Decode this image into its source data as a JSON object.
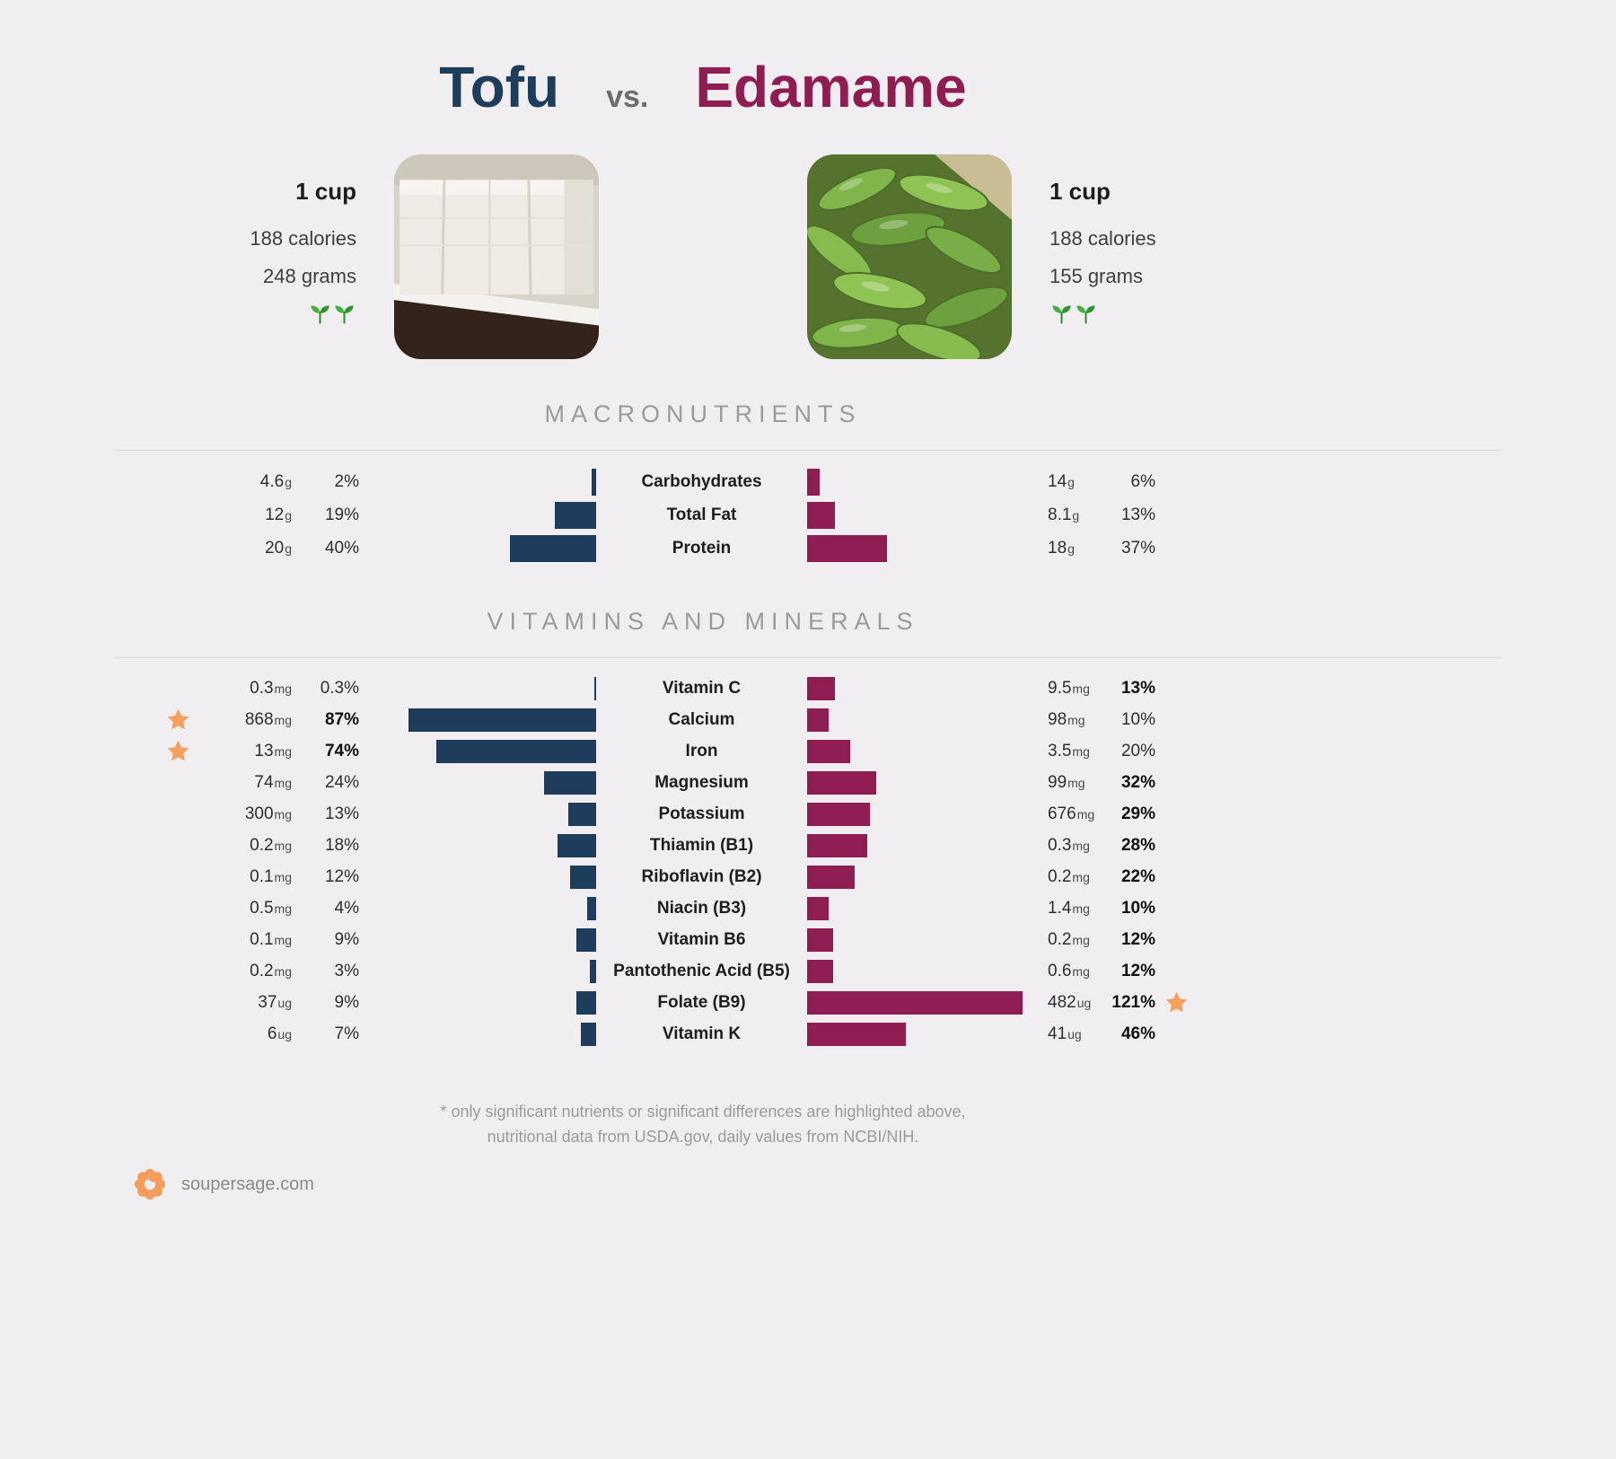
{
  "header": {
    "tofu_title": "Tofu",
    "vs_label": "vs.",
    "edamame_title": "Edamame"
  },
  "foods": {
    "tofu": {
      "serving": "1 cup",
      "calories": "188 calories",
      "weight": "248 grams"
    },
    "edamame": {
      "serving": "1 cup",
      "calories": "188 calories",
      "weight": "155 grams"
    }
  },
  "footnote": {
    "line1": "* only significant nutrients or significant differences are highlighted above,",
    "line2": "nutritional data from USDA.gov, daily values from NCBI/NIH."
  },
  "footer": {
    "site": "soupersage.com"
  },
  "icons": {
    "highlight": "star-icon",
    "plant_based": "sprout-icon",
    "brand": "flower-logo-icon"
  },
  "colors": {
    "tofu_bar": "#1e3c5c",
    "edamame_bar": "#8e1d52",
    "star": "#f5a05f",
    "background": "#f0eef1",
    "heading_gray": "#9b9b9b"
  },
  "chart_data": [
    {
      "type": "bar",
      "title": "MACRONUTRIENTS",
      "orientation": "horizontal-diverging",
      "series": [
        "Tofu",
        "Edamame"
      ],
      "value_unit": "% daily value",
      "axis_max_pct": 100,
      "rows": [
        {
          "label": "Carbohydrates",
          "left": {
            "value": "4.6",
            "unit": "g",
            "pct": 2,
            "pct_label": "2%",
            "bold": false,
            "star": false
          },
          "right": {
            "value": "14",
            "unit": "g",
            "pct": 6,
            "pct_label": "6%",
            "bold": false,
            "star": false
          }
        },
        {
          "label": "Total Fat",
          "left": {
            "value": "12",
            "unit": "g",
            "pct": 19,
            "pct_label": "19%",
            "bold": false,
            "star": false
          },
          "right": {
            "value": "8.1",
            "unit": "g",
            "pct": 13,
            "pct_label": "13%",
            "bold": false,
            "star": false
          }
        },
        {
          "label": "Protein",
          "left": {
            "value": "20",
            "unit": "g",
            "pct": 40,
            "pct_label": "40%",
            "bold": false,
            "star": false
          },
          "right": {
            "value": "18",
            "unit": "g",
            "pct": 37,
            "pct_label": "37%",
            "bold": false,
            "star": false
          }
        }
      ]
    },
    {
      "type": "bar",
      "title": "VITAMINS AND MINERALS",
      "orientation": "horizontal-diverging",
      "series": [
        "Tofu",
        "Edamame"
      ],
      "value_unit": "% daily value",
      "axis_max_pct": 100,
      "rows": [
        {
          "label": "Vitamin C",
          "left": {
            "value": "0.3",
            "unit": "mg",
            "pct": 0.3,
            "pct_label": "0.3%",
            "bold": false,
            "star": false
          },
          "right": {
            "value": "9.5",
            "unit": "mg",
            "pct": 13,
            "pct_label": "13%",
            "bold": true,
            "star": false
          }
        },
        {
          "label": "Calcium",
          "left": {
            "value": "868",
            "unit": "mg",
            "pct": 87,
            "pct_label": "87%",
            "bold": true,
            "star": true
          },
          "right": {
            "value": "98",
            "unit": "mg",
            "pct": 10,
            "pct_label": "10%",
            "bold": false,
            "star": false
          }
        },
        {
          "label": "Iron",
          "left": {
            "value": "13",
            "unit": "mg",
            "pct": 74,
            "pct_label": "74%",
            "bold": true,
            "star": true
          },
          "right": {
            "value": "3.5",
            "unit": "mg",
            "pct": 20,
            "pct_label": "20%",
            "bold": false,
            "star": false
          }
        },
        {
          "label": "Magnesium",
          "left": {
            "value": "74",
            "unit": "mg",
            "pct": 24,
            "pct_label": "24%",
            "bold": false,
            "star": false
          },
          "right": {
            "value": "99",
            "unit": "mg",
            "pct": 32,
            "pct_label": "32%",
            "bold": true,
            "star": false
          }
        },
        {
          "label": "Potassium",
          "left": {
            "value": "300",
            "unit": "mg",
            "pct": 13,
            "pct_label": "13%",
            "bold": false,
            "star": false
          },
          "right": {
            "value": "676",
            "unit": "mg",
            "pct": 29,
            "pct_label": "29%",
            "bold": true,
            "star": false
          }
        },
        {
          "label": "Thiamin (B1)",
          "left": {
            "value": "0.2",
            "unit": "mg",
            "pct": 18,
            "pct_label": "18%",
            "bold": false,
            "star": false
          },
          "right": {
            "value": "0.3",
            "unit": "mg",
            "pct": 28,
            "pct_label": "28%",
            "bold": true,
            "star": false
          }
        },
        {
          "label": "Riboflavin (B2)",
          "left": {
            "value": "0.1",
            "unit": "mg",
            "pct": 12,
            "pct_label": "12%",
            "bold": false,
            "star": false
          },
          "right": {
            "value": "0.2",
            "unit": "mg",
            "pct": 22,
            "pct_label": "22%",
            "bold": true,
            "star": false
          }
        },
        {
          "label": "Niacin (B3)",
          "left": {
            "value": "0.5",
            "unit": "mg",
            "pct": 4,
            "pct_label": "4%",
            "bold": false,
            "star": false
          },
          "right": {
            "value": "1.4",
            "unit": "mg",
            "pct": 10,
            "pct_label": "10%",
            "bold": true,
            "star": false
          }
        },
        {
          "label": "Vitamin B6",
          "left": {
            "value": "0.1",
            "unit": "mg",
            "pct": 9,
            "pct_label": "9%",
            "bold": false,
            "star": false
          },
          "right": {
            "value": "0.2",
            "unit": "mg",
            "pct": 12,
            "pct_label": "12%",
            "bold": true,
            "star": false
          }
        },
        {
          "label": "Pantothenic Acid (B5)",
          "left": {
            "value": "0.2",
            "unit": "mg",
            "pct": 3,
            "pct_label": "3%",
            "bold": false,
            "star": false
          },
          "right": {
            "value": "0.6",
            "unit": "mg",
            "pct": 12,
            "pct_label": "12%",
            "bold": true,
            "star": false
          }
        },
        {
          "label": "Folate (B9)",
          "left": {
            "value": "37",
            "unit": "ug",
            "pct": 9,
            "pct_label": "9%",
            "bold": false,
            "star": false
          },
          "right": {
            "value": "482",
            "unit": "ug",
            "pct": 121,
            "pct_label": "121%",
            "bold": true,
            "star": true
          }
        },
        {
          "label": "Vitamin K",
          "left": {
            "value": "6",
            "unit": "ug",
            "pct": 7,
            "pct_label": "7%",
            "bold": false,
            "star": false
          },
          "right": {
            "value": "41",
            "unit": "ug",
            "pct": 46,
            "pct_label": "46%",
            "bold": true,
            "star": false
          }
        }
      ]
    }
  ]
}
